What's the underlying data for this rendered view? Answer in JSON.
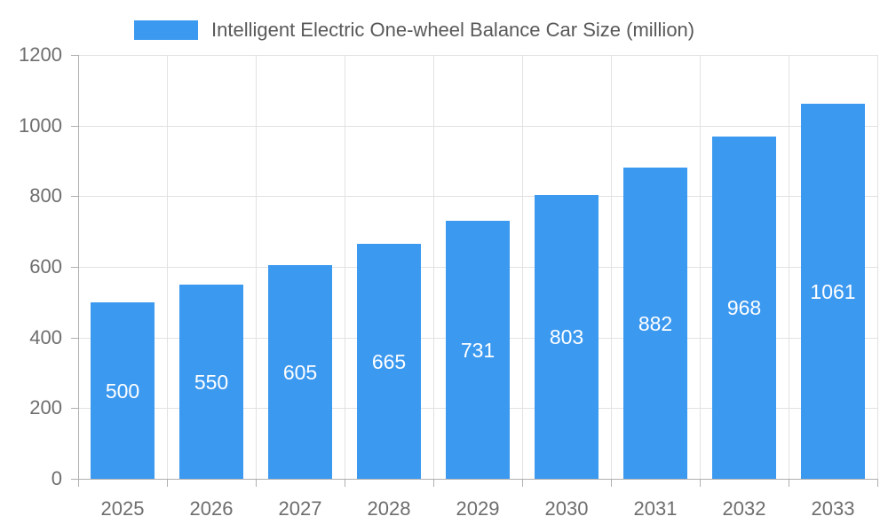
{
  "colors": {
    "bar": "#3c99f0",
    "bar_value_text": "#ffffff",
    "gridline": "#e2e2e2",
    "axis_line": "#b0b0b0",
    "axis_text": "#6e6e6e",
    "title_text": "#595959"
  },
  "legend": {
    "label": "Intelligent Electric One-wheel Balance Car Size (million)"
  },
  "chart_data": {
    "type": "bar",
    "title": "Intelligent Electric One-wheel Balance Car Size (million)",
    "categories": [
      "2025",
      "2026",
      "2027",
      "2028",
      "2029",
      "2030",
      "2031",
      "2032",
      "2033"
    ],
    "values": [
      500,
      550,
      605,
      665,
      731,
      803,
      882,
      968,
      1061
    ],
    "xlabel": "",
    "ylabel": "",
    "ylim": [
      0,
      1200
    ],
    "yticks": [
      0,
      200,
      400,
      600,
      800,
      1000,
      1200
    ],
    "grid": true,
    "legend_position": "top",
    "value_label_position": "inside-center"
  }
}
